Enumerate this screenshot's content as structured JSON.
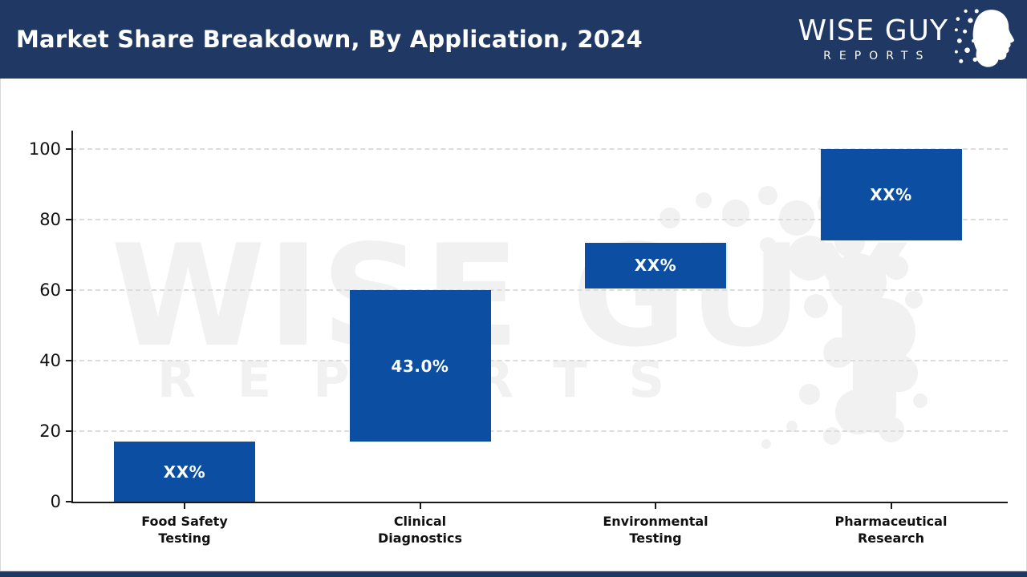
{
  "header": {
    "title": "Market Share Breakdown, By Application, 2024",
    "logo": {
      "name": "WISE GUY",
      "sub": "REPORTS"
    }
  },
  "watermark": {
    "name": "WISE GUY",
    "sub": "REPORTS"
  },
  "colors": {
    "header_bg": "#203864",
    "footer_bg": "#203864",
    "bar": "#0B4EA2",
    "grid": "#dcdcdc",
    "axis": "#1a1a1a",
    "watermark": "#f1f1f1",
    "border": "#d9d9d9"
  },
  "chart_data": {
    "type": "bar",
    "subtype": "floating-waterfall",
    "title": "Market Share Breakdown, By Application, 2024",
    "categories": [
      "Food Safety Testing",
      "Clinical Diagnostics",
      "Environmental Testing",
      "Pharmaceutical Research"
    ],
    "category_lines": [
      [
        "Food Safety",
        "Testing"
      ],
      [
        "Clinical",
        "Diagnostics"
      ],
      [
        "Environmental",
        "Testing"
      ],
      [
        "Pharmaceutical",
        "Research"
      ]
    ],
    "series": [
      {
        "name": "Market Share (%)",
        "segments": [
          {
            "category": "Food Safety Testing",
            "start": 0,
            "end": 17,
            "label": "XX%"
          },
          {
            "category": "Clinical Diagnostics",
            "start": 17,
            "end": 60,
            "label": "43.0%"
          },
          {
            "category": "Environmental Testing",
            "start": 60.5,
            "end": 73.5,
            "label": "XX%"
          },
          {
            "category": "Pharmaceutical Research",
            "start": 74,
            "end": 100,
            "label": "XX%"
          }
        ]
      }
    ],
    "xlabel": "",
    "ylabel": "",
    "ylim": [
      0,
      100
    ],
    "yticks": [
      0,
      20,
      40,
      60,
      80,
      100
    ],
    "grid": "horizontal-dashed",
    "legend": "none"
  }
}
